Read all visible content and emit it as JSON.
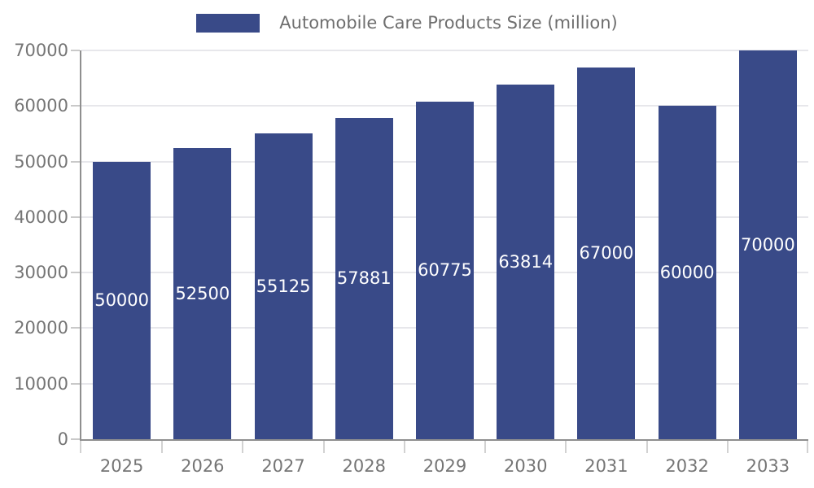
{
  "chart_data": {
    "type": "bar",
    "title": "Automobile Care Products Size (million)",
    "categories": [
      "2025",
      "2026",
      "2027",
      "2028",
      "2029",
      "2030",
      "2031",
      "2032",
      "2033"
    ],
    "values": [
      50000,
      52500,
      55125,
      57881,
      60775,
      63814,
      67000,
      60000,
      70000
    ],
    "value_labels": [
      "50000",
      "52500",
      "55125",
      "57881",
      "60775",
      "63814",
      "67000",
      "60000",
      "70000"
    ],
    "xlabel": "",
    "ylabel": "",
    "ylim": [
      0,
      70000
    ],
    "yticks": [
      0,
      10000,
      20000,
      30000,
      40000,
      50000,
      60000,
      70000
    ],
    "y_tick_labels": [
      "0",
      "10000",
      "20000",
      "30000",
      "40000",
      "50000",
      "60000",
      "70000"
    ],
    "grid": true,
    "legend_position": "top",
    "legend_entries": [
      "Automobile Care Products Size (million)"
    ],
    "bar_color": "#394A88",
    "value_label_color": "#ffffff",
    "axis_label_color": "#757575",
    "legend_text_color": "#6e6e6e"
  }
}
